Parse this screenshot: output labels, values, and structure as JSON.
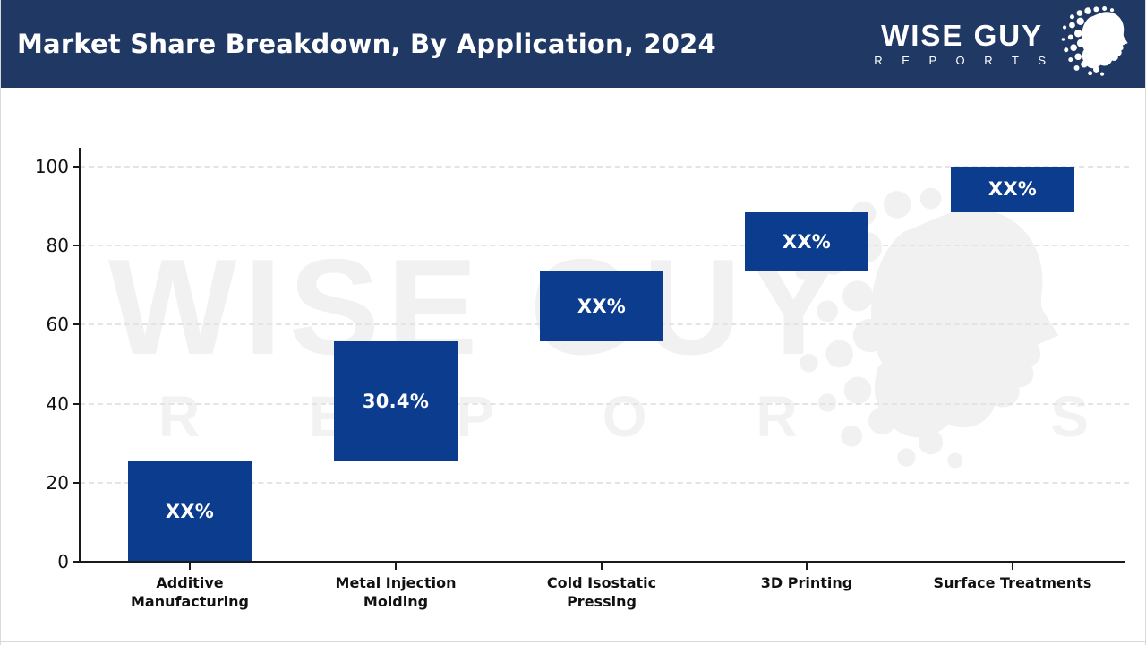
{
  "header": {
    "title": "Market Share Breakdown, By Application, 2024",
    "background_color": "#203864",
    "logo": {
      "main": "WISE GUY",
      "sub": "R E P O R T S",
      "head_icon": "dotted-face-profile"
    }
  },
  "watermark": {
    "line1": "WISE GUY",
    "line2": "R E P O R T S",
    "head_icon": "dotted-face-profile",
    "color": "#f1f1f1"
  },
  "chart_data": {
    "type": "bar",
    "subtype": "waterfall-floating-segments",
    "title": "Market Share Breakdown, By Application, 2024",
    "xlabel": "",
    "ylabel": "",
    "categories": [
      "Additive\nManufacturing",
      "Metal Injection\nMolding",
      "Cold Isostatic\nPressing",
      "3D Printing",
      "Surface Treatments"
    ],
    "segments": [
      {
        "start": 0,
        "end": 25.4,
        "label": "XX%"
      },
      {
        "start": 25.4,
        "end": 55.8,
        "label": "30.4%"
      },
      {
        "start": 55.8,
        "end": 73.4,
        "label": "XX%"
      },
      {
        "start": 73.4,
        "end": 88.5,
        "label": "XX%"
      },
      {
        "start": 88.5,
        "end": 100,
        "label": "XX%"
      }
    ],
    "yticks": [
      0,
      20,
      40,
      60,
      80,
      100
    ],
    "ylim": [
      0,
      104
    ],
    "grid": "horizontal-dashed",
    "legend": "none",
    "bar_color": "#0b3c8e",
    "bar_label_color": "#ffffff",
    "axis_color": "#1a1a1a",
    "gridline_color": "#e4e4e4"
  }
}
